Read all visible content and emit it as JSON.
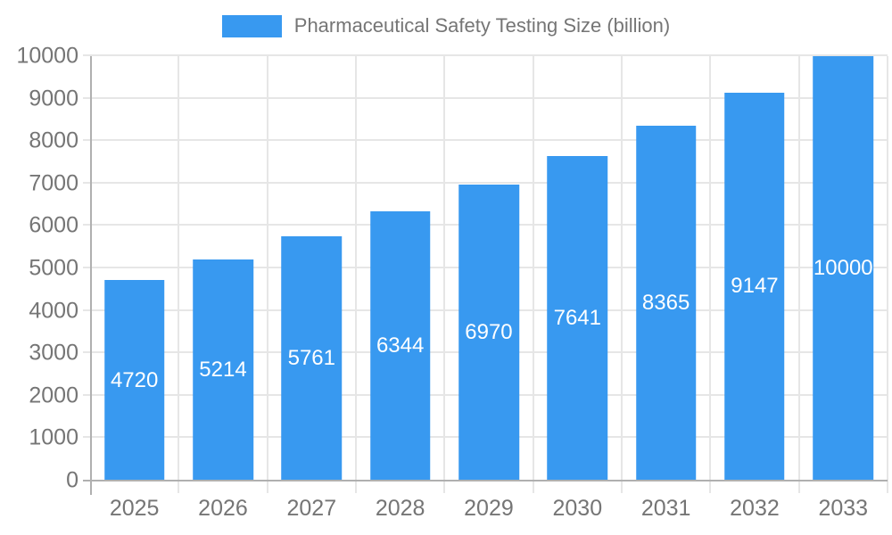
{
  "chart_data": {
    "type": "bar",
    "title": "Pharmaceutical Safety Testing Size (billion)",
    "categories": [
      "2025",
      "2026",
      "2027",
      "2028",
      "2029",
      "2030",
      "2031",
      "2032",
      "2033"
    ],
    "values": [
      4720,
      5214,
      5761,
      6344,
      6970,
      7641,
      8365,
      9147,
      10000
    ],
    "xlabel": "",
    "ylabel": "",
    "ylim": [
      0,
      10000
    ],
    "ytick_step": 1000,
    "grid": true,
    "legend_position": "top-center",
    "value_labels": "inside-center",
    "colors": {
      "bar": "#3899F0",
      "grid": "#e6e6e6",
      "axis": "#b0b0b0",
      "tick_text": "#757575",
      "legend_text": "#757575",
      "value_label_text": "#ffffff",
      "background": "#ffffff"
    }
  }
}
